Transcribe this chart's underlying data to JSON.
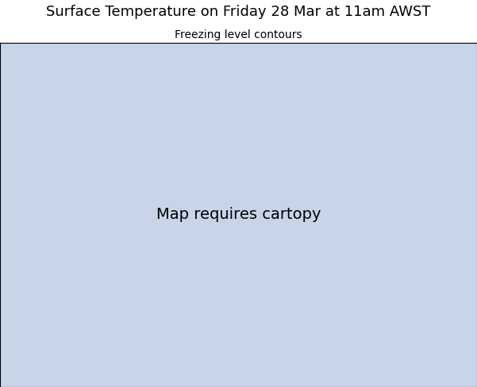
{
  "title": "Surface Temperature on Friday 28 Mar at 11am AWST",
  "subtitle": "Freezing level contours",
  "title_fontsize": 13,
  "subtitle_fontsize": 10,
  "background_color": "#ffffff",
  "ocean_color": "#c8d4e8",
  "land_color_warm": "#cc4400",
  "border_color": "#000000",
  "contour_color": "#ff0000",
  "contour_linewidth": 1.5,
  "contour_label_fontsize": 7,
  "fig_width": 6.01,
  "fig_height": 4.88,
  "dpi": 100,
  "lon_min": 90,
  "lon_max": 160,
  "lat_min": -48,
  "lat_max": -5,
  "grid_color": "#aaaacc",
  "grid_alpha": 0.5,
  "grid_linewidth": 0.5
}
